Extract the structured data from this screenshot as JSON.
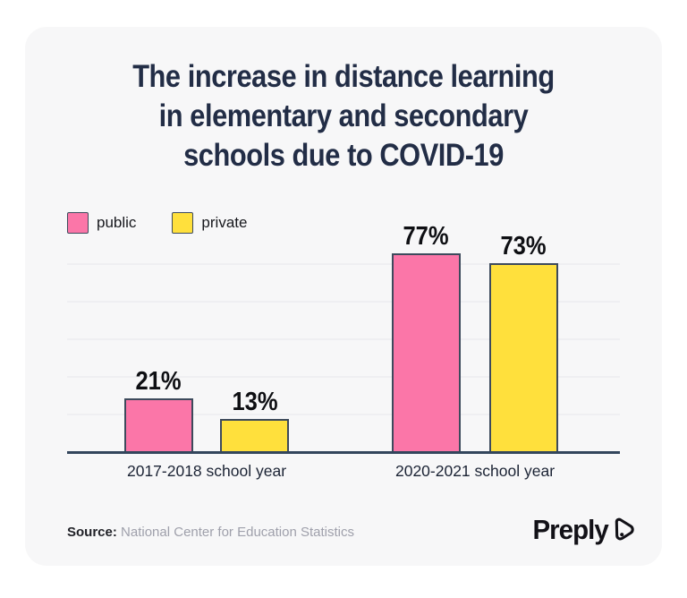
{
  "title": "The increase in distance learning\nin elementary and secondary\nschools due to COVID-19",
  "chart_data": {
    "type": "bar",
    "title": "The increase in distance learning in elementary and secondary schools due to COVID-19",
    "categories": [
      "2017-2018 school year",
      "2020-2021 school year"
    ],
    "series": [
      {
        "name": "public",
        "color": "#FB76A8",
        "values": [
          21,
          77
        ],
        "labels": [
          "21%",
          "77%"
        ]
      },
      {
        "name": "private",
        "color": "#FFE03C",
        "values": [
          13,
          73
        ],
        "labels": [
          "13%",
          "73%"
        ]
      }
    ],
    "unit": "%",
    "ylim": [
      0,
      90
    ],
    "grid": "horizontal-light",
    "legend_position": "top-left",
    "bar_border_color": "#3D4A5C",
    "axis_color": "#33465C"
  },
  "footer": {
    "source_label": "Source:",
    "source_value": "National Center for Education Statistics",
    "brand": "Preply"
  },
  "colors": {
    "card_bg": "#F7F7F8",
    "page_bg": "#FFFFFF",
    "title_text": "#222D46",
    "gridline": "#EFEFF2",
    "value_label": "#0E0F13",
    "source_value_text": "#9FA0AB",
    "logo": "#121117"
  }
}
